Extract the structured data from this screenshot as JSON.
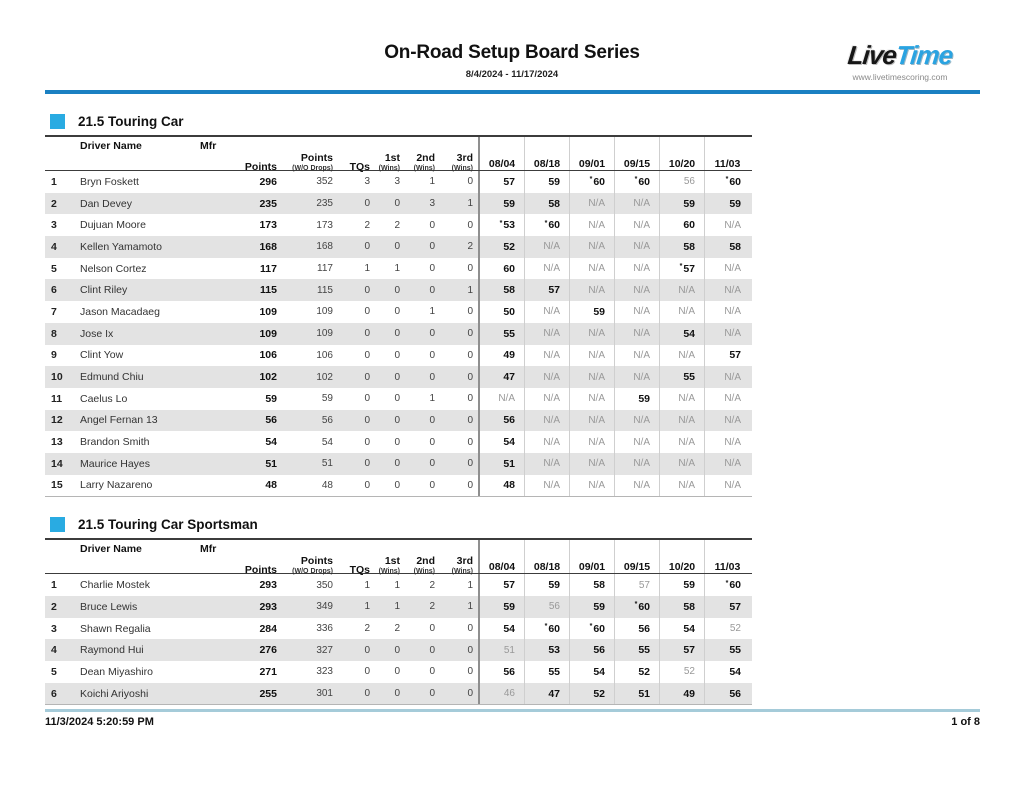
{
  "header": {
    "title": "On-Road Setup Board Series",
    "date_range": "8/4/2024 - 11/17/2024",
    "logo": {
      "live": "Live",
      "time": "Time",
      "url": "www.livetimescoring.com"
    }
  },
  "columns": {
    "driver": "Driver Name",
    "mfr": "Mfr",
    "points": "Points",
    "points_wo": "Points",
    "points_wo_sub": "(W/O Drops)",
    "tqs": "TQs",
    "first": "1st",
    "second": "2nd",
    "third": "3rd",
    "wins_sub": "(Wins)",
    "dates": [
      "08/04",
      "08/18",
      "09/01",
      "09/15",
      "10/20",
      "11/03"
    ]
  },
  "sections": [
    {
      "title": "21.5 Touring Car",
      "rows": [
        {
          "rank": "1",
          "driver": "Bryn Foskett",
          "mfr": "",
          "points": "296",
          "points_wo": "352",
          "tqs": "3",
          "first": "3",
          "second": "1",
          "third": "0",
          "scores": [
            {
              "t": "57"
            },
            {
              "t": "59"
            },
            {
              "t": "60",
              "tq": true
            },
            {
              "t": "60",
              "tq": true
            },
            {
              "t": "56",
              "drop": true
            },
            {
              "t": "60",
              "tq": true
            }
          ]
        },
        {
          "rank": "2",
          "driver": "Dan Devey",
          "mfr": "",
          "points": "235",
          "points_wo": "235",
          "tqs": "0",
          "first": "0",
          "second": "3",
          "third": "1",
          "scores": [
            {
              "t": "59"
            },
            {
              "t": "58"
            },
            {
              "t": "N/A"
            },
            {
              "t": "N/A"
            },
            {
              "t": "59"
            },
            {
              "t": "59"
            }
          ]
        },
        {
          "rank": "3",
          "driver": "Dujuan Moore",
          "mfr": "",
          "points": "173",
          "points_wo": "173",
          "tqs": "2",
          "first": "2",
          "second": "0",
          "third": "0",
          "scores": [
            {
              "t": "53",
              "tq": true
            },
            {
              "t": "60",
              "tq": true
            },
            {
              "t": "N/A"
            },
            {
              "t": "N/A"
            },
            {
              "t": "60"
            },
            {
              "t": "N/A"
            }
          ]
        },
        {
          "rank": "4",
          "driver": "Kellen Yamamoto",
          "mfr": "",
          "points": "168",
          "points_wo": "168",
          "tqs": "0",
          "first": "0",
          "second": "0",
          "third": "2",
          "scores": [
            {
              "t": "52"
            },
            {
              "t": "N/A"
            },
            {
              "t": "N/A"
            },
            {
              "t": "N/A"
            },
            {
              "t": "58"
            },
            {
              "t": "58"
            }
          ]
        },
        {
          "rank": "5",
          "driver": "Nelson Cortez",
          "mfr": "",
          "points": "117",
          "points_wo": "117",
          "tqs": "1",
          "first": "1",
          "second": "0",
          "third": "0",
          "scores": [
            {
              "t": "60"
            },
            {
              "t": "N/A"
            },
            {
              "t": "N/A"
            },
            {
              "t": "N/A"
            },
            {
              "t": "57",
              "tq": true
            },
            {
              "t": "N/A"
            }
          ]
        },
        {
          "rank": "6",
          "driver": "Clint Riley",
          "mfr": "",
          "points": "115",
          "points_wo": "115",
          "tqs": "0",
          "first": "0",
          "second": "0",
          "third": "1",
          "scores": [
            {
              "t": "58"
            },
            {
              "t": "57"
            },
            {
              "t": "N/A"
            },
            {
              "t": "N/A"
            },
            {
              "t": "N/A"
            },
            {
              "t": "N/A"
            }
          ]
        },
        {
          "rank": "7",
          "driver": "Jason Macadaeg",
          "mfr": "",
          "points": "109",
          "points_wo": "109",
          "tqs": "0",
          "first": "0",
          "second": "1",
          "third": "0",
          "scores": [
            {
              "t": "50"
            },
            {
              "t": "N/A"
            },
            {
              "t": "59"
            },
            {
              "t": "N/A"
            },
            {
              "t": "N/A"
            },
            {
              "t": "N/A"
            }
          ]
        },
        {
          "rank": "8",
          "driver": "Jose Ix",
          "mfr": "",
          "points": "109",
          "points_wo": "109",
          "tqs": "0",
          "first": "0",
          "second": "0",
          "third": "0",
          "scores": [
            {
              "t": "55"
            },
            {
              "t": "N/A"
            },
            {
              "t": "N/A"
            },
            {
              "t": "N/A"
            },
            {
              "t": "54"
            },
            {
              "t": "N/A"
            }
          ]
        },
        {
          "rank": "9",
          "driver": "Clint Yow",
          "mfr": "",
          "points": "106",
          "points_wo": "106",
          "tqs": "0",
          "first": "0",
          "second": "0",
          "third": "0",
          "scores": [
            {
              "t": "49"
            },
            {
              "t": "N/A"
            },
            {
              "t": "N/A"
            },
            {
              "t": "N/A"
            },
            {
              "t": "N/A"
            },
            {
              "t": "57"
            }
          ]
        },
        {
          "rank": "10",
          "driver": "Edmund Chiu",
          "mfr": "",
          "points": "102",
          "points_wo": "102",
          "tqs": "0",
          "first": "0",
          "second": "0",
          "third": "0",
          "scores": [
            {
              "t": "47"
            },
            {
              "t": "N/A"
            },
            {
              "t": "N/A"
            },
            {
              "t": "N/A"
            },
            {
              "t": "55"
            },
            {
              "t": "N/A"
            }
          ]
        },
        {
          "rank": "11",
          "driver": "Caelus Lo",
          "mfr": "",
          "points": "59",
          "points_wo": "59",
          "tqs": "0",
          "first": "0",
          "second": "1",
          "third": "0",
          "scores": [
            {
              "t": "N/A"
            },
            {
              "t": "N/A"
            },
            {
              "t": "N/A"
            },
            {
              "t": "59"
            },
            {
              "t": "N/A"
            },
            {
              "t": "N/A"
            }
          ]
        },
        {
          "rank": "12",
          "driver": "Angel Fernan 13",
          "mfr": "",
          "points": "56",
          "points_wo": "56",
          "tqs": "0",
          "first": "0",
          "second": "0",
          "third": "0",
          "scores": [
            {
              "t": "56"
            },
            {
              "t": "N/A"
            },
            {
              "t": "N/A"
            },
            {
              "t": "N/A"
            },
            {
              "t": "N/A"
            },
            {
              "t": "N/A"
            }
          ]
        },
        {
          "rank": "13",
          "driver": "Brandon Smith",
          "mfr": "",
          "points": "54",
          "points_wo": "54",
          "tqs": "0",
          "first": "0",
          "second": "0",
          "third": "0",
          "scores": [
            {
              "t": "54"
            },
            {
              "t": "N/A"
            },
            {
              "t": "N/A"
            },
            {
              "t": "N/A"
            },
            {
              "t": "N/A"
            },
            {
              "t": "N/A"
            }
          ]
        },
        {
          "rank": "14",
          "driver": "Maurice Hayes",
          "mfr": "",
          "points": "51",
          "points_wo": "51",
          "tqs": "0",
          "first": "0",
          "second": "0",
          "third": "0",
          "scores": [
            {
              "t": "51"
            },
            {
              "t": "N/A"
            },
            {
              "t": "N/A"
            },
            {
              "t": "N/A"
            },
            {
              "t": "N/A"
            },
            {
              "t": "N/A"
            }
          ]
        },
        {
          "rank": "15",
          "driver": "Larry Nazareno",
          "mfr": "",
          "points": "48",
          "points_wo": "48",
          "tqs": "0",
          "first": "0",
          "second": "0",
          "third": "0",
          "scores": [
            {
              "t": "48"
            },
            {
              "t": "N/A"
            },
            {
              "t": "N/A"
            },
            {
              "t": "N/A"
            },
            {
              "t": "N/A"
            },
            {
              "t": "N/A"
            }
          ]
        }
      ]
    },
    {
      "title": "21.5 Touring Car Sportsman",
      "rows": [
        {
          "rank": "1",
          "driver": "Charlie Mostek",
          "mfr": "",
          "points": "293",
          "points_wo": "350",
          "tqs": "1",
          "first": "1",
          "second": "2",
          "third": "1",
          "scores": [
            {
              "t": "57"
            },
            {
              "t": "59"
            },
            {
              "t": "58"
            },
            {
              "t": "57",
              "drop": true
            },
            {
              "t": "59"
            },
            {
              "t": "60",
              "tq": true
            }
          ]
        },
        {
          "rank": "2",
          "driver": "Bruce Lewis",
          "mfr": "",
          "points": "293",
          "points_wo": "349",
          "tqs": "1",
          "first": "1",
          "second": "2",
          "third": "1",
          "scores": [
            {
              "t": "59"
            },
            {
              "t": "56",
              "drop": true
            },
            {
              "t": "59"
            },
            {
              "t": "60",
              "tq": true
            },
            {
              "t": "58"
            },
            {
              "t": "57"
            }
          ]
        },
        {
          "rank": "3",
          "driver": "Shawn Regalia",
          "mfr": "",
          "points": "284",
          "points_wo": "336",
          "tqs": "2",
          "first": "2",
          "second": "0",
          "third": "0",
          "scores": [
            {
              "t": "54"
            },
            {
              "t": "60",
              "tq": true
            },
            {
              "t": "60",
              "tq": true
            },
            {
              "t": "56"
            },
            {
              "t": "54"
            },
            {
              "t": "52",
              "drop": true
            }
          ]
        },
        {
          "rank": "4",
          "driver": "Raymond Hui",
          "mfr": "",
          "points": "276",
          "points_wo": "327",
          "tqs": "0",
          "first": "0",
          "second": "0",
          "third": "0",
          "scores": [
            {
              "t": "51",
              "drop": true
            },
            {
              "t": "53"
            },
            {
              "t": "56"
            },
            {
              "t": "55"
            },
            {
              "t": "57"
            },
            {
              "t": "55"
            }
          ]
        },
        {
          "rank": "5",
          "driver": "Dean Miyashiro",
          "mfr": "",
          "points": "271",
          "points_wo": "323",
          "tqs": "0",
          "first": "0",
          "second": "0",
          "third": "0",
          "scores": [
            {
              "t": "56"
            },
            {
              "t": "55"
            },
            {
              "t": "54"
            },
            {
              "t": "52"
            },
            {
              "t": "52",
              "drop": true
            },
            {
              "t": "54"
            }
          ]
        },
        {
          "rank": "6",
          "driver": "Koichi Ariyoshi",
          "mfr": "",
          "points": "255",
          "points_wo": "301",
          "tqs": "0",
          "first": "0",
          "second": "0",
          "third": "0",
          "scores": [
            {
              "t": "46",
              "drop": true
            },
            {
              "t": "47"
            },
            {
              "t": "52"
            },
            {
              "t": "51"
            },
            {
              "t": "49"
            },
            {
              "t": "56"
            }
          ]
        }
      ]
    }
  ],
  "footer": {
    "timestamp": "11/3/2024 5:20:59 PM",
    "page": "1 of 8"
  },
  "colors": {
    "accent_blue": "#1a80c2",
    "section_cyan": "#29abe2",
    "footer_rule": "#a5cbd9",
    "zebra_gray": "#e3e3e3",
    "dim_text": "#999999",
    "logo_blue": "#2aa3e1"
  }
}
